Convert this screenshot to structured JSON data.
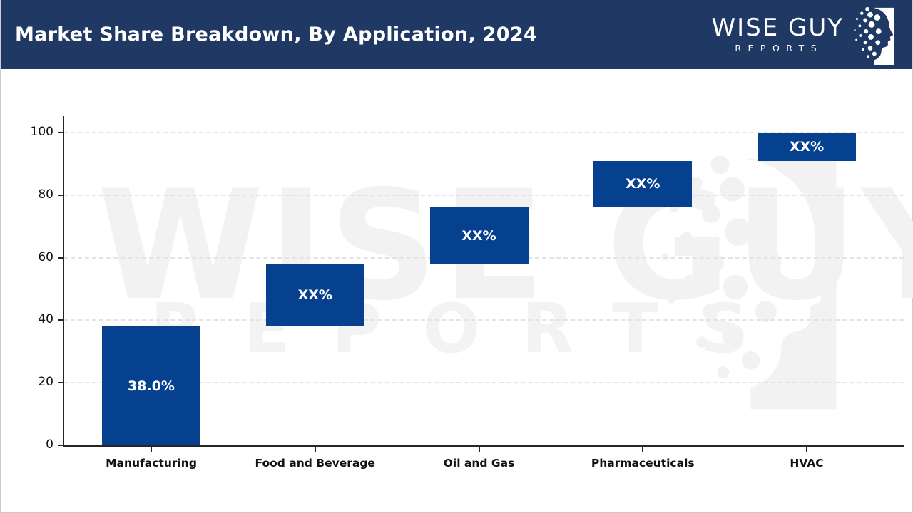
{
  "header": {
    "title": "Market Share Breakdown, By Application, 2024",
    "brand": {
      "name": "WISE GUY",
      "sub": "REPORTS"
    }
  },
  "watermark": {
    "line1": "WISE GUY",
    "line2": "REPORTS"
  },
  "icons": {
    "brand_face": "dotted-face-profile-icon"
  },
  "chart_data": {
    "type": "bar",
    "variant": "waterfall",
    "title": "Market Share Breakdown, By Application, 2024",
    "categories": [
      "Manufacturing",
      "Food and Beverage",
      "Oil and Gas",
      "Pharmaceuticals",
      "HVAC"
    ],
    "segments": [
      {
        "category": "Manufacturing",
        "start": 0,
        "end": 38,
        "value": 38,
        "label": "38.0%"
      },
      {
        "category": "Food and Beverage",
        "start": 38,
        "end": 58,
        "value": 20,
        "label": "XX%"
      },
      {
        "category": "Oil and Gas",
        "start": 58,
        "end": 76,
        "value": 18,
        "label": "XX%"
      },
      {
        "category": "Pharmaceuticals",
        "start": 76,
        "end": 91,
        "value": 15,
        "label": "XX%"
      },
      {
        "category": "HVAC",
        "start": 91,
        "end": 100,
        "value": 9,
        "label": "XX%"
      }
    ],
    "yticks": [
      0,
      20,
      40,
      60,
      80,
      100
    ],
    "ylim": [
      0,
      105
    ],
    "xlabel": "",
    "ylabel": "",
    "legend": null,
    "grid": "horizontal-dashed",
    "colors": {
      "bar": "#05418f",
      "bar_label": "#ffffff",
      "header_bg": "#203864",
      "axis": "#262626",
      "grid": "#e3e3e3",
      "tick_label": "#111111",
      "watermark": "#f2f2f2"
    }
  }
}
